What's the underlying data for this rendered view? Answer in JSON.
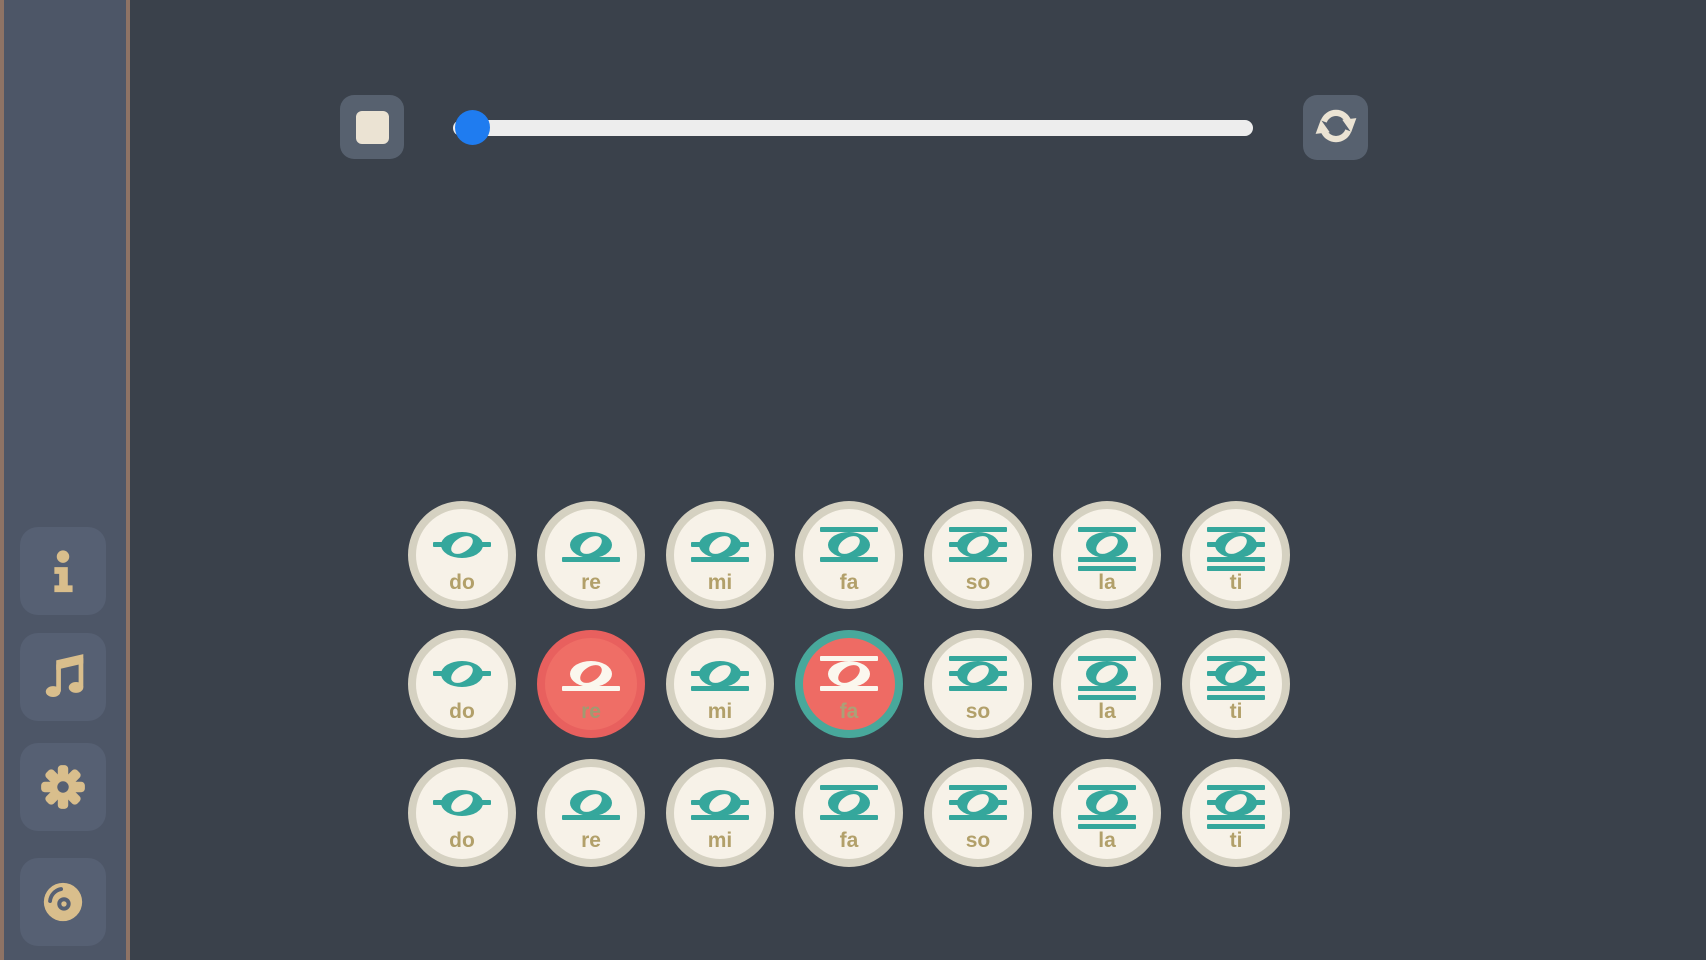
{
  "app": {
    "background_color": "#3a414b"
  },
  "sidebar": {
    "background_color": "#4d5667",
    "border_color": "#8e7365",
    "button_background": "#566073",
    "icon_color": "#d9be8c",
    "items": [
      {
        "id": "info",
        "icon": "info-icon"
      },
      {
        "id": "music",
        "icon": "music-note-icon"
      },
      {
        "id": "settings",
        "icon": "gear-icon"
      },
      {
        "id": "audio",
        "icon": "disc-icon"
      }
    ]
  },
  "transport": {
    "stop_button": {
      "icon": "stop-icon",
      "background": "#57616f",
      "icon_color": "#ebe3d3"
    },
    "progress_slider": {
      "value_percent": 0,
      "track_color": "#ededed",
      "thumb_color": "#1f7cf0"
    },
    "replay_button": {
      "icon": "refresh-icon",
      "background": "#57616f",
      "icon_color": "#ebe3d3"
    }
  },
  "solfege_grid": {
    "note_color": "#35a79c",
    "circle_fill": "#f7f2e8",
    "ring_color": "#d5d1c1",
    "label_color": "#b2a06a",
    "highlight_colors": {
      "fill": "#ee6b64",
      "ring_red": "#e8605e",
      "ring_teal": "#48a89b",
      "note_color": "#fbf7ee",
      "label_color": "#a19a71"
    },
    "rows": [
      {
        "notes": [
          {
            "label": "do",
            "lines": [
              "mid"
            ],
            "state": "normal"
          },
          {
            "label": "re",
            "lines": [
              "bot"
            ],
            "state": "normal"
          },
          {
            "label": "mi",
            "lines": [
              "mid",
              "bot"
            ],
            "state": "normal"
          },
          {
            "label": "fa",
            "lines": [
              "top",
              "bot"
            ],
            "state": "normal"
          },
          {
            "label": "so",
            "lines": [
              "top",
              "mid",
              "bot"
            ],
            "state": "normal"
          },
          {
            "label": "la",
            "lines": [
              "top",
              "bot",
              "bot2"
            ],
            "state": "normal"
          },
          {
            "label": "ti",
            "lines": [
              "top",
              "mid",
              "bot",
              "bot2"
            ],
            "state": "normal"
          }
        ]
      },
      {
        "notes": [
          {
            "label": "do",
            "lines": [
              "mid"
            ],
            "state": "normal"
          },
          {
            "label": "re",
            "lines": [
              "bot"
            ],
            "state": "red"
          },
          {
            "label": "mi",
            "lines": [
              "mid",
              "bot"
            ],
            "state": "normal"
          },
          {
            "label": "fa",
            "lines": [
              "top",
              "bot"
            ],
            "state": "red-teal"
          },
          {
            "label": "so",
            "lines": [
              "top",
              "mid",
              "bot"
            ],
            "state": "normal"
          },
          {
            "label": "la",
            "lines": [
              "top",
              "bot",
              "bot2"
            ],
            "state": "normal"
          },
          {
            "label": "ti",
            "lines": [
              "top",
              "mid",
              "bot",
              "bot2"
            ],
            "state": "normal"
          }
        ]
      },
      {
        "notes": [
          {
            "label": "do",
            "lines": [
              "mid"
            ],
            "state": "normal"
          },
          {
            "label": "re",
            "lines": [
              "bot"
            ],
            "state": "normal"
          },
          {
            "label": "mi",
            "lines": [
              "mid",
              "bot"
            ],
            "state": "normal"
          },
          {
            "label": "fa",
            "lines": [
              "top",
              "bot"
            ],
            "state": "normal"
          },
          {
            "label": "so",
            "lines": [
              "top",
              "mid",
              "bot"
            ],
            "state": "normal"
          },
          {
            "label": "la",
            "lines": [
              "top",
              "bot",
              "bot2"
            ],
            "state": "normal"
          },
          {
            "label": "ti",
            "lines": [
              "top",
              "mid",
              "bot",
              "bot2"
            ],
            "state": "normal"
          }
        ]
      }
    ]
  }
}
